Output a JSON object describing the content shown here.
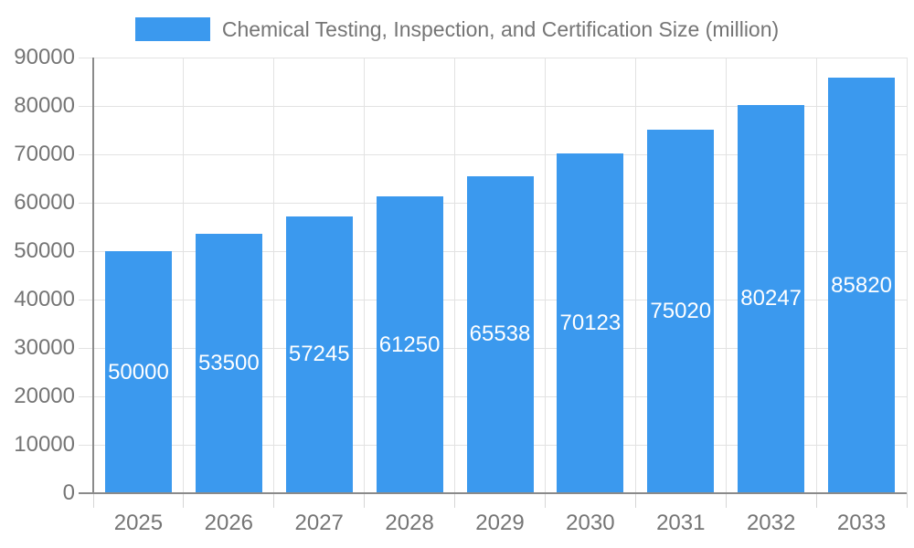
{
  "chart_data": {
    "type": "bar",
    "title": "Chemical Testing, Inspection, and Certification Size (million)",
    "categories": [
      "2025",
      "2026",
      "2027",
      "2028",
      "2029",
      "2030",
      "2031",
      "2032",
      "2033"
    ],
    "series": [
      {
        "name": "Chemical Testing, Inspection, and Certification Size (million)",
        "values": [
          50000,
          53500,
          57245,
          61250,
          65538,
          70123,
          75020,
          80247,
          85820
        ]
      }
    ],
    "bar_value_labels": [
      "50000",
      "53500",
      "57245",
      "61250",
      "65538",
      "70123",
      "75020",
      "80247",
      "85820"
    ],
    "xlabel": "",
    "ylabel": "",
    "ylim": [
      0,
      90000
    ],
    "yticks": [
      0,
      10000,
      20000,
      30000,
      40000,
      50000,
      60000,
      70000,
      80000,
      90000
    ],
    "grid": true,
    "legend_position": "top",
    "value_label_position": "center-of-bar",
    "colors": {
      "bar": "#3B99EE",
      "axis_text": "#757575",
      "value_label_text": "#FFFFFF",
      "gridline": "#E2E2E2",
      "axis_line": "#8A8A8A"
    }
  }
}
